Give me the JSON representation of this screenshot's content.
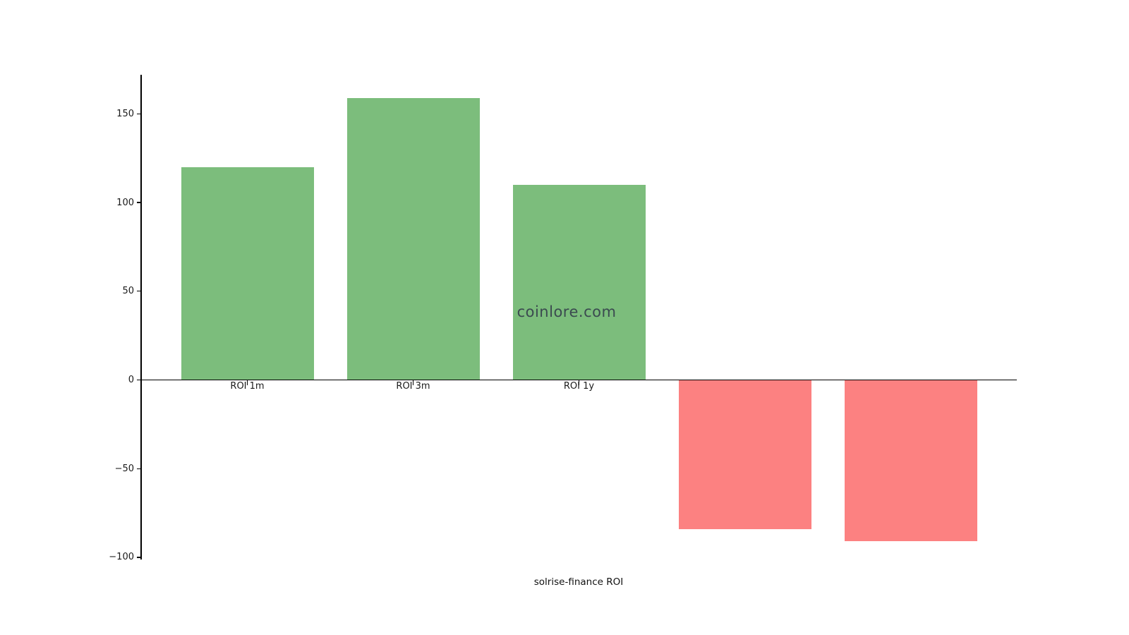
{
  "page": {
    "background": "#ffffff"
  },
  "watermark": {
    "text": "coinlore.com",
    "color": "#3b4a50"
  },
  "chart_data": {
    "type": "bar",
    "title": "solrise-finance ROI",
    "xlabel": "solrise-finance ROI",
    "ylabel": "",
    "categories": [
      "ROI 1m",
      "ROI 3m",
      "ROI 1y",
      "",
      ""
    ],
    "values": [
      120,
      159,
      110,
      -84,
      -91
    ],
    "positive_color": "#7cbd7c",
    "negative_color": "#fc8181",
    "yticks": [
      150,
      100,
      50,
      0,
      -50,
      -100
    ],
    "ylim": [
      -101,
      172
    ],
    "grid": false,
    "legend_position": "none",
    "axis_color": "#000000",
    "tick_label_color": "#1a1a1a"
  }
}
